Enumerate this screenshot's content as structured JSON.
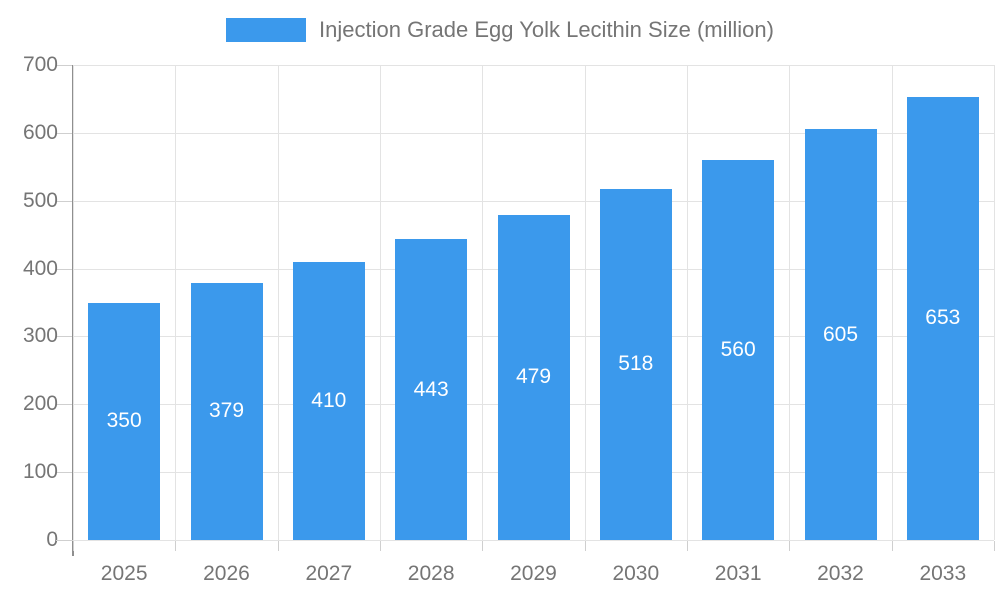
{
  "page": {
    "background": "#FFFFFF"
  },
  "colors": {
    "bar": "#3B99EC",
    "grid": "#E3E3E3",
    "axis_line": "#8F8F8F",
    "tick": "#CFCFCF",
    "text": "#757575",
    "value_label": "#FFFFFF"
  },
  "legend": {
    "label": "Injection Grade Egg Yolk Lecithin Size (million)",
    "swatch_color": "#3B99EC"
  },
  "chart_data": {
    "type": "bar",
    "title": "",
    "categories": [
      "2025",
      "2026",
      "2027",
      "2028",
      "2029",
      "2030",
      "2031",
      "2032",
      "2033"
    ],
    "series": [
      {
        "name": "Injection Grade Egg Yolk Lecithin Size (million)",
        "values": [
          350,
          379,
          410,
          443,
          479,
          518,
          560,
          605,
          653
        ],
        "color": "#3B99EC"
      }
    ],
    "value_labels": {
      "position": "inside-center",
      "color": "#FFFFFF"
    },
    "xlabel": "",
    "ylabel": "",
    "ylim": [
      0,
      700
    ],
    "y_ticks": [
      0,
      100,
      200,
      300,
      400,
      500,
      600,
      700
    ],
    "grid": true,
    "legend_position": "top-center"
  }
}
